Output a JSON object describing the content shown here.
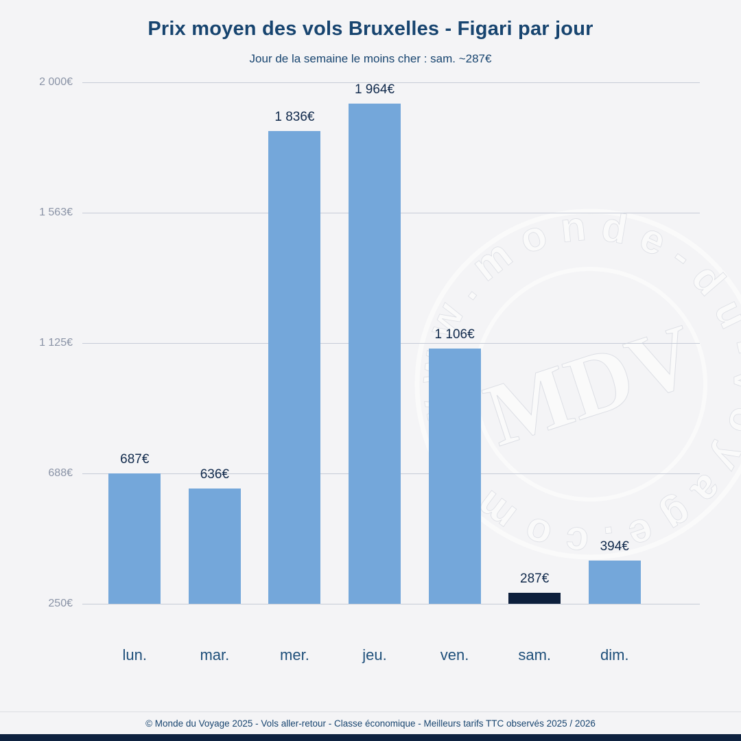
{
  "title": "Prix moyen des vols Bruxelles - Figari par jour",
  "subtitle": "Jour de la semaine le moins cher : sam. ~287€",
  "footer": "© Monde du Voyage 2025 - Vols aller-retour - Classe économique - Meilleurs tarifs TTC observés 2025 / 2026",
  "watermark": {
    "ring_text": "www.monde-du-voyage.com .",
    "center_text": "MDV"
  },
  "colors": {
    "background": "#f4f4f6",
    "bar": "#74a7da",
    "bar_highlight": "#0d1f3c",
    "title": "#17446f",
    "grid": "#c6cbd7",
    "axis_label": "#8a93a6",
    "value_label": "#10294b",
    "x_label": "#1d4e79",
    "bottom_bar": "#0e2240"
  },
  "chart_data": {
    "type": "bar",
    "title": "Prix moyen des vols Bruxelles - Figari par jour",
    "subtitle": "Jour de la semaine le moins cher : sam. ~287€",
    "categories": [
      "lun.",
      "mar.",
      "mer.",
      "jeu.",
      "ven.",
      "sam.",
      "dim."
    ],
    "values": [
      687,
      636,
      1836,
      1964,
      1106,
      287,
      394
    ],
    "value_labels": [
      "687€",
      "636€",
      "1 836€",
      "1 964€",
      "1 106€",
      "287€",
      "394€"
    ],
    "highlight_index": 5,
    "ylim": [
      250,
      2000
    ],
    "y_ticks": [
      250,
      688,
      1125,
      1563,
      2000
    ],
    "y_tick_labels": [
      "250€",
      "688€",
      "1 125€",
      "1 563€",
      "2 000€"
    ],
    "xlabel": "",
    "ylabel": "",
    "grid": "horizontal",
    "legend": "none"
  }
}
